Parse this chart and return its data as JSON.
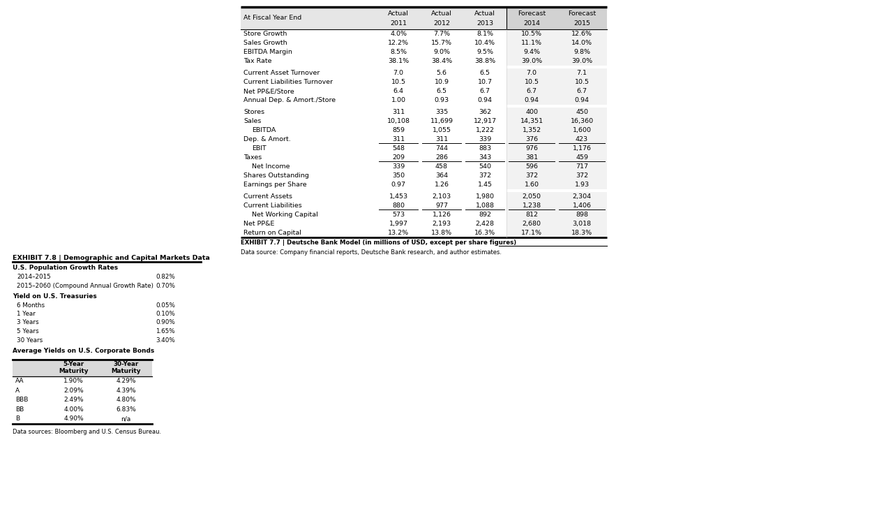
{
  "table1_title": "EXHIBIT 7.7 | Deutsche Bank Model (in millions of USD, except per share figures)",
  "table1_source": "Data source: Company financial reports, Deutsche Bank research, and author estimates.",
  "table2_title": "EXHIBIT 7.8 | Demographic and Capital Markets Data",
  "table2_source": "Data sources: Bloomberg and U.S. Census Bureau.",
  "header_col": "At Fiscal Year End",
  "headers": [
    "Actual\n2011",
    "Actual\n2012",
    "Actual\n2013",
    "Forecast\n2014",
    "Forecast\n2015"
  ],
  "rows": [
    {
      "label": "Store Growth",
      "indent": 0,
      "values": [
        "4.0%",
        "7.7%",
        "8.1%",
        "10.5%",
        "12.6%"
      ],
      "underline": false,
      "section_break_before": false
    },
    {
      "label": "Sales Growth",
      "indent": 0,
      "values": [
        "12.2%",
        "15.7%",
        "10.4%",
        "11.1%",
        "14.0%"
      ],
      "underline": false,
      "section_break_before": false
    },
    {
      "label": "EBITDA Margin",
      "indent": 0,
      "values": [
        "8.5%",
        "9.0%",
        "9.5%",
        "9.4%",
        "9.8%"
      ],
      "underline": false,
      "section_break_before": false
    },
    {
      "label": "Tax Rate",
      "indent": 0,
      "values": [
        "38.1%",
        "38.4%",
        "38.8%",
        "39.0%",
        "39.0%"
      ],
      "underline": false,
      "section_break_before": false
    },
    {
      "label": "Current Asset Turnover",
      "indent": 0,
      "values": [
        "7.0",
        "5.6",
        "6.5",
        "7.0",
        "7.1"
      ],
      "underline": false,
      "section_break_before": true
    },
    {
      "label": "Current Liabilities Turnover",
      "indent": 0,
      "values": [
        "10.5",
        "10.9",
        "10.7",
        "10.5",
        "10.5"
      ],
      "underline": false,
      "section_break_before": false
    },
    {
      "label": "Net PP&E/Store",
      "indent": 0,
      "values": [
        "6.4",
        "6.5",
        "6.7",
        "6.7",
        "6.7"
      ],
      "underline": false,
      "section_break_before": false
    },
    {
      "label": "Annual Dep. & Amort./Store",
      "indent": 0,
      "values": [
        "1.00",
        "0.93",
        "0.94",
        "0.94",
        "0.94"
      ],
      "underline": false,
      "section_break_before": false
    },
    {
      "label": "Stores",
      "indent": 0,
      "values": [
        "311",
        "335",
        "362",
        "400",
        "450"
      ],
      "underline": false,
      "section_break_before": true
    },
    {
      "label": "Sales",
      "indent": 0,
      "values": [
        "10,108",
        "11,699",
        "12,917",
        "14,351",
        "16,360"
      ],
      "underline": false,
      "section_break_before": false
    },
    {
      "label": "EBITDA",
      "indent": 1,
      "values": [
        "859",
        "1,055",
        "1,222",
        "1,352",
        "1,600"
      ],
      "underline": false,
      "section_break_before": false
    },
    {
      "label": "Dep. & Amort.",
      "indent": 0,
      "values": [
        "311",
        "311",
        "339",
        "376",
        "423"
      ],
      "underline": true,
      "section_break_before": false
    },
    {
      "label": "EBIT",
      "indent": 1,
      "values": [
        "548",
        "744",
        "883",
        "976",
        "1,176"
      ],
      "underline": false,
      "section_break_before": false
    },
    {
      "label": "Taxes",
      "indent": 0,
      "values": [
        "209",
        "286",
        "343",
        "381",
        "459"
      ],
      "underline": true,
      "section_break_before": false
    },
    {
      "label": "Net Income",
      "indent": 1,
      "values": [
        "339",
        "458",
        "540",
        "596",
        "717"
      ],
      "underline": false,
      "section_break_before": false
    },
    {
      "label": "Shares Outstanding",
      "indent": 0,
      "values": [
        "350",
        "364",
        "372",
        "372",
        "372"
      ],
      "underline": false,
      "section_break_before": false
    },
    {
      "label": "Earnings per Share",
      "indent": 0,
      "values": [
        "0.97",
        "1.26",
        "1.45",
        "1.60",
        "1.93"
      ],
      "underline": false,
      "section_break_before": false
    },
    {
      "label": "Current Assets",
      "indent": 0,
      "values": [
        "1,453",
        "2,103",
        "1,980",
        "2,050",
        "2,304"
      ],
      "underline": false,
      "section_break_before": true
    },
    {
      "label": "Current Liabilities",
      "indent": 0,
      "values": [
        "880",
        "977",
        "1,088",
        "1,238",
        "1,406"
      ],
      "underline": true,
      "section_break_before": false
    },
    {
      "label": "Net Working Capital",
      "indent": 1,
      "values": [
        "573",
        "1,126",
        "892",
        "812",
        "898"
      ],
      "underline": false,
      "section_break_before": false
    },
    {
      "label": "Net PP&E",
      "indent": 0,
      "values": [
        "1,997",
        "2,193",
        "2,428",
        "2,680",
        "3,018"
      ],
      "underline": false,
      "section_break_before": false
    },
    {
      "label": "Return on Capital",
      "indent": 0,
      "values": [
        "13.2%",
        "13.8%",
        "16.3%",
        "17.1%",
        "18.3%"
      ],
      "underline": false,
      "section_break_before": false
    }
  ],
  "pop_growth": [
    {
      "label": "2014–2015",
      "value": "0.82%"
    },
    {
      "label": "2015–2060 (Compound Annual Growth Rate)",
      "value": "0.70%"
    }
  ],
  "treasury_yields": [
    {
      "label": "6 Months",
      "value": "0.05%"
    },
    {
      "label": "1 Year",
      "value": "0.10%"
    },
    {
      "label": "3 Years",
      "value": "0.90%"
    },
    {
      "label": "5 Years",
      "value": "1.65%"
    },
    {
      "label": "30 Years",
      "value": "3.40%"
    }
  ],
  "bond_headers": [
    "",
    "5-Year\nMaturity",
    "30-Year\nMaturity"
  ],
  "bond_rows": [
    [
      "AA",
      "1.90%",
      "4.29%"
    ],
    [
      "A",
      "2.09%",
      "4.39%"
    ],
    [
      "BBB",
      "2.49%",
      "4.80%"
    ],
    [
      "BB",
      "4.00%",
      "6.83%"
    ],
    [
      "B",
      "4.90%",
      "n/a"
    ]
  ],
  "bg_color": "#ffffff"
}
